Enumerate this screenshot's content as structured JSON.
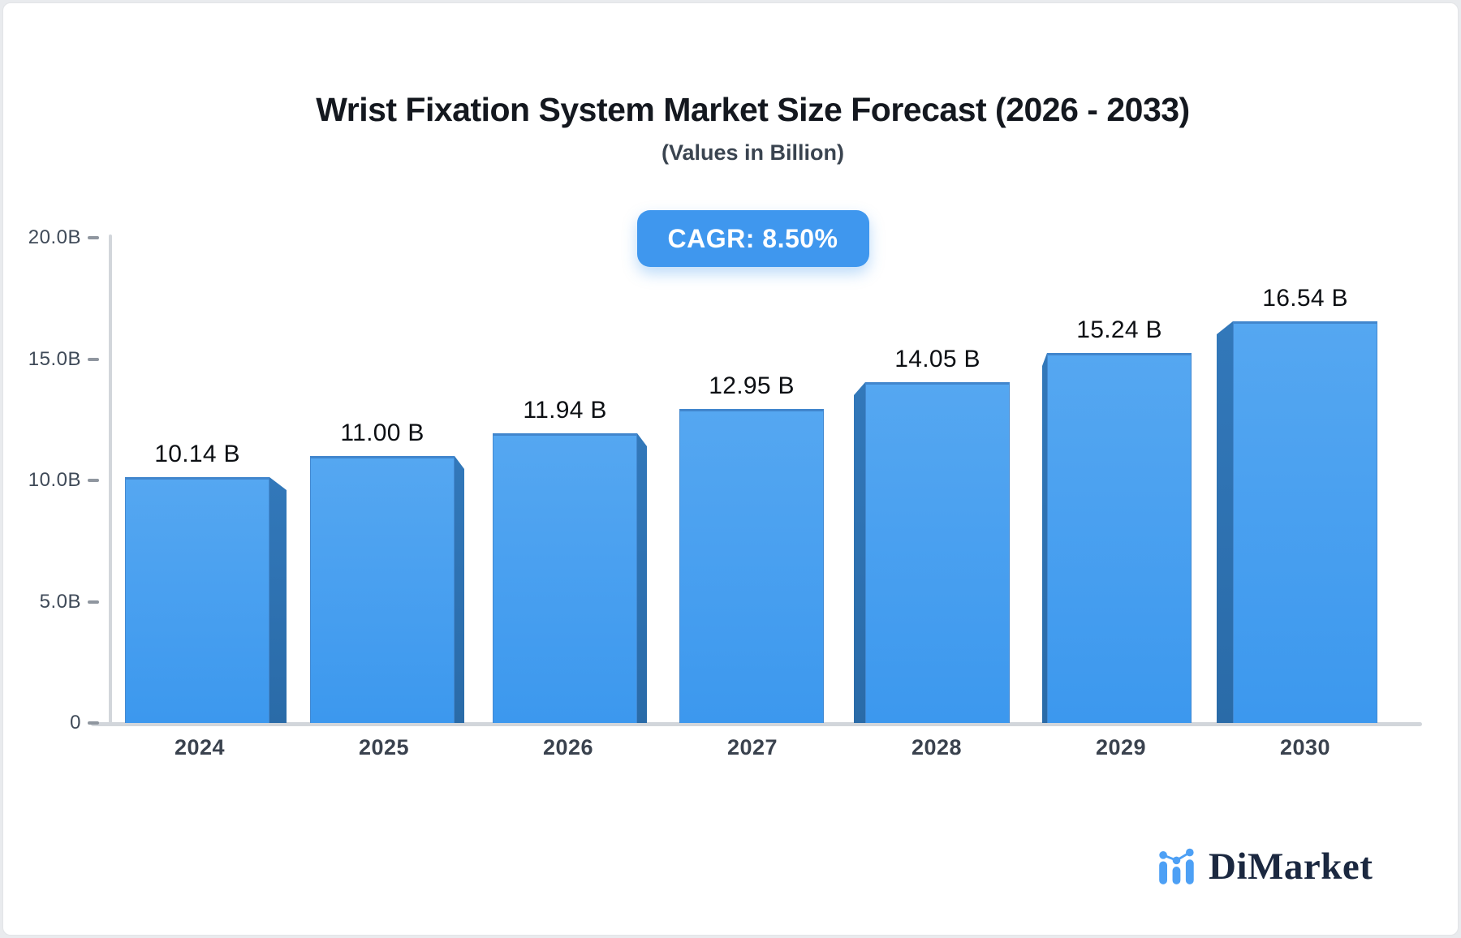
{
  "header": {
    "title": "Wrist Fixation System Market Size Forecast (2026 - 2033)",
    "subtitle": "(Values in Billion)",
    "cagr_badge": "CAGR: 8.50%"
  },
  "chart_data": {
    "type": "bar",
    "title": "Wrist Fixation System Market Size Forecast (2026 - 2033)",
    "subtitle": "(Values in Billion)",
    "cagr_label": "CAGR: 8.50%",
    "cagr_value_pct": 8.5,
    "unit": "Billion",
    "categories": [
      "2024",
      "2025",
      "2026",
      "2027",
      "2028",
      "2029",
      "2030"
    ],
    "values": [
      10.14,
      11.0,
      11.94,
      12.95,
      14.05,
      15.24,
      16.54
    ],
    "bar_labels": [
      "10.14 B",
      "11.00 B",
      "11.94 B",
      "12.95 B",
      "14.05 B",
      "15.24 B",
      "16.54 B"
    ],
    "xlabel": "",
    "ylabel": "",
    "ylim": [
      0,
      20
    ],
    "y_ticks": [
      {
        "value": 20,
        "label": "20.0B"
      },
      {
        "value": 15,
        "label": "15.0B"
      },
      {
        "value": 10,
        "label": "10.0B"
      },
      {
        "value": 5,
        "label": "5.0B"
      },
      {
        "value": 0,
        "label": "0"
      }
    ],
    "grid": false,
    "legend": null,
    "colors": {
      "bar_face_top": "#55a7f1",
      "bar_face_bottom": "#3c98ee",
      "bar_side_3d": "#2d74b5",
      "bar_top_edge": "#4186cd",
      "badge_background": "#3f97ee",
      "axis_line": "#d2d6db",
      "tick_text": "#3f4a58",
      "value_text": "#0c0f13"
    }
  },
  "logo": {
    "icon": "mini-bar-chart-icon",
    "icon_color": "#4da0f5",
    "text": "DiMarket",
    "text_color": "#1b2840"
  }
}
